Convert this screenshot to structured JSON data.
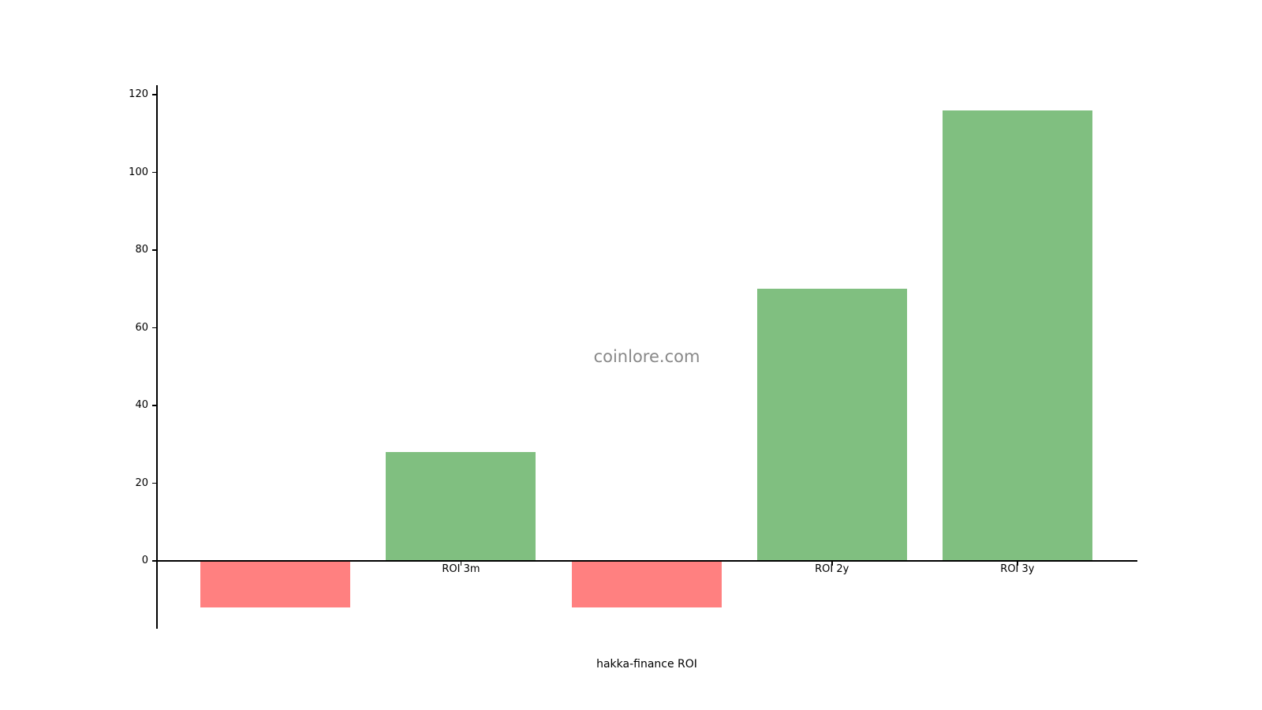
{
  "page": {
    "background": "#ffffff"
  },
  "watermark": {
    "text": "coinlore.com",
    "color": "#888888"
  },
  "title": {
    "text": "hakka-finance ROI"
  },
  "chart_data": {
    "type": "bar",
    "title": "hakka-finance ROI",
    "watermark": "coinlore.com",
    "categories": [
      "",
      "ROI 3m",
      "",
      "ROI 2y",
      "ROI 3y"
    ],
    "values": [
      -12,
      28,
      -12,
      70,
      116
    ],
    "bar_colors": [
      "#ff8080",
      "#80bf80",
      "#ff8080",
      "#80bf80",
      "#80bf80"
    ],
    "positive_color": "#80bf80",
    "negative_color": "#ff8080",
    "yticks": [
      0,
      20,
      40,
      60,
      80,
      100,
      120
    ],
    "ylim": [
      -17.5,
      122.5
    ],
    "xlabel": "hakka-finance ROI",
    "ylabel": "",
    "grid": false,
    "legend": false,
    "axis_color": "#000000",
    "note": "x labels at red (negative) bars are hidden behind the bars"
  }
}
